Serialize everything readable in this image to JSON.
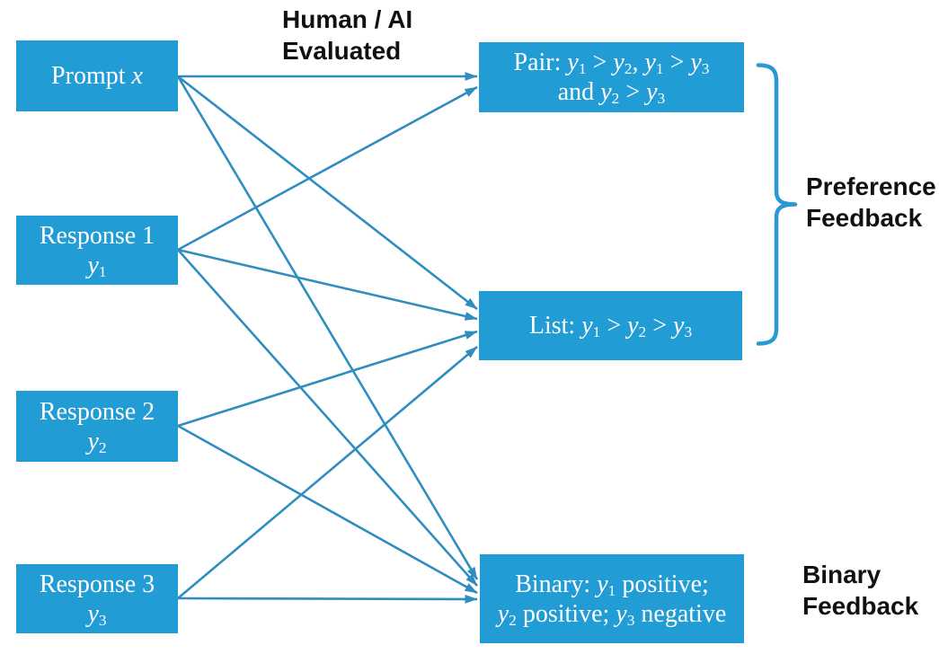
{
  "labels": {
    "evaluated": {
      "line1": "Human / AI",
      "line2": "Evaluated"
    },
    "preference": {
      "line1": "Preference",
      "line2": "Feedback"
    },
    "binary": {
      "line1": "Binary",
      "line2": "Feedback"
    }
  },
  "nodes": {
    "prompt": {
      "line1": "Prompt {x}",
      "line2": ""
    },
    "response1": {
      "line1": "Response 1",
      "line2": "{y_1}"
    },
    "response2": {
      "line1": "Response 2",
      "line2": "{y_2}"
    },
    "response3": {
      "line1": "Response 3",
      "line2": "{y_3}"
    },
    "pair": {
      "line1": "Pair: {y_1} > {y_2}, {y_1} > {y_3}",
      "line2": "and {y_2} > {y_3}"
    },
    "list": {
      "line1": "List: {y_1} > {y_2} > {y_3}",
      "line2": ""
    },
    "binary": {
      "line1": "Binary: {y_1} positive;",
      "line2": "{y_2} positive; {y_3} negative"
    }
  },
  "edges": [
    {
      "from": "prompt",
      "to": "pair"
    },
    {
      "from": "response1",
      "to": "pair"
    },
    {
      "from": "prompt",
      "to": "list"
    },
    {
      "from": "response1",
      "to": "list"
    },
    {
      "from": "response2",
      "to": "list"
    },
    {
      "from": "response3",
      "to": "list"
    },
    {
      "from": "prompt",
      "to": "binary"
    },
    {
      "from": "response1",
      "to": "binary"
    },
    {
      "from": "response2",
      "to": "binary"
    },
    {
      "from": "response3",
      "to": "binary"
    }
  ],
  "colors": {
    "node_fill": "#219CD5",
    "node_text": "#FFFFFF",
    "arrow": "#2F8DBF",
    "brace": "#2A99D3",
    "label_text": "#111111"
  }
}
